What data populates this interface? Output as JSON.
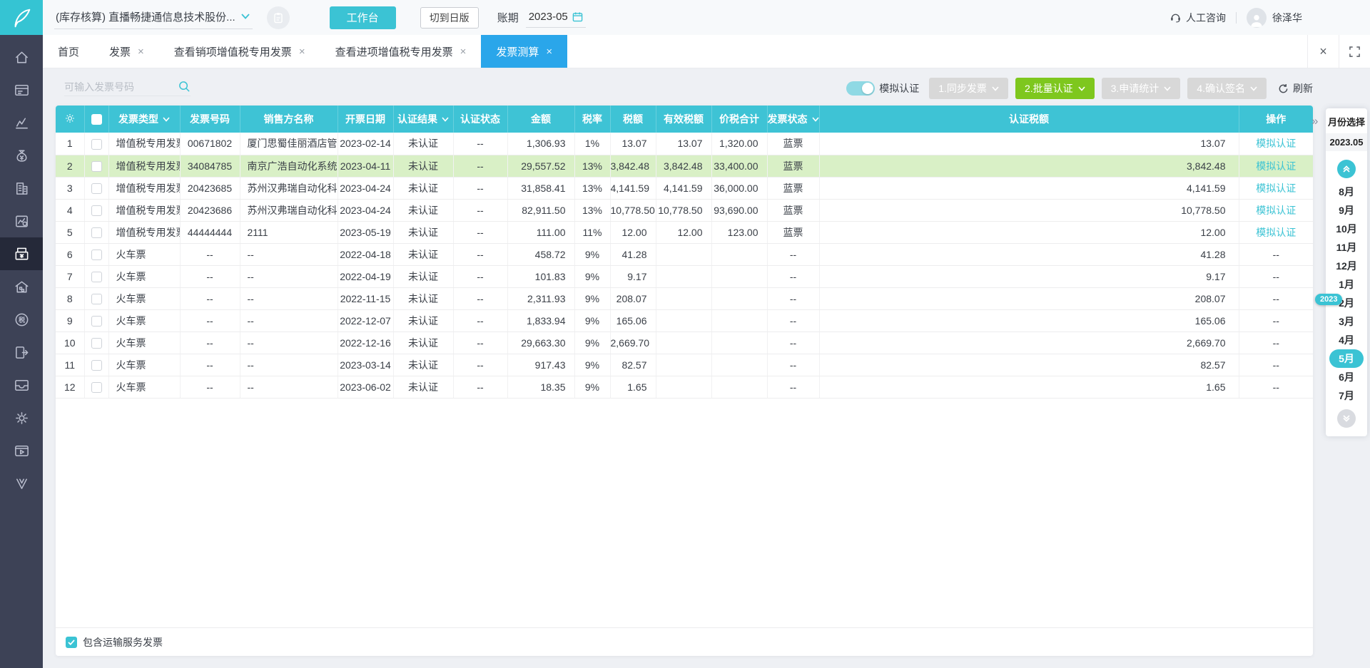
{
  "colors": {
    "accent_teal": "#3bc3d4",
    "table_header_teal": "#3ec3d5",
    "active_tab_blue": "#2aa6ea",
    "button_green": "#7ec71e",
    "button_gray": "#d8d8d8",
    "selected_row_green": "#d9f0c6",
    "sidebar_bg": "#3d4256"
  },
  "topbar": {
    "company": "(库存核算) 直播畅捷通信息技术股份...",
    "workbench_btn": "工作台",
    "switch_btn": "切到日版",
    "period_label": "账期",
    "period_value": "2023-05",
    "support": "人工咨询",
    "username": "徐泽华"
  },
  "tabs": [
    {
      "label": "首页",
      "closable": false,
      "active": false
    },
    {
      "label": "发票",
      "closable": true,
      "active": false
    },
    {
      "label": "查看销项增值税专用发票",
      "closable": true,
      "active": false
    },
    {
      "label": "查看进项增值税专用发票",
      "closable": true,
      "active": false
    },
    {
      "label": "发票测算",
      "closable": true,
      "active": true
    }
  ],
  "toolbar": {
    "search_placeholder": "可输入发票号码",
    "toggle_label": "模拟认证",
    "toggle_on": true,
    "buttons": [
      {
        "label": "1.同步发票",
        "style": "gray"
      },
      {
        "label": "2.批量认证",
        "style": "green"
      },
      {
        "label": "3.申请统计",
        "style": "gray"
      },
      {
        "label": "4.确认签名",
        "style": "gray"
      }
    ],
    "refresh_label": "刷新"
  },
  "table": {
    "columns": [
      "发票类型",
      "发票号码",
      "销售方名称",
      "开票日期",
      "认证结果",
      "认证状态",
      "金额",
      "税率",
      "税额",
      "有效税额",
      "价税合计",
      "发票状态",
      "认证税额",
      "操作"
    ],
    "sortable_columns": [
      "发票类型",
      "认证结果",
      "发票状态"
    ],
    "rows": [
      {
        "num": "1",
        "type": "增值税专用发票",
        "no": "00671802",
        "seller": "厦门思蜀佳丽酒店管理有限...",
        "date": "2023-02-14",
        "result": "未认证",
        "status": "--",
        "amount": "1,306.93",
        "rate": "1%",
        "tax": "13.07",
        "valid_tax": "13.07",
        "total": "1,320.00",
        "inv_status": "蓝票",
        "cert_tax": "13.07",
        "action": "模拟认证",
        "selected": false
      },
      {
        "num": "2",
        "type": "增值税专用发票",
        "no": "34084785",
        "seller": "南京广浩自动化系统有限责...",
        "date": "2023-04-11",
        "result": "未认证",
        "status": "--",
        "amount": "29,557.52",
        "rate": "13%",
        "tax": "3,842.48",
        "valid_tax": "3,842.48",
        "total": "33,400.00",
        "inv_status": "蓝票",
        "cert_tax": "3,842.48",
        "action": "模拟认证",
        "selected": true
      },
      {
        "num": "3",
        "type": "增值税专用发票",
        "no": "20423685",
        "seller": "苏州汉弗瑞自动化科技有限...",
        "date": "2023-04-24",
        "result": "未认证",
        "status": "--",
        "amount": "31,858.41",
        "rate": "13%",
        "tax": "4,141.59",
        "valid_tax": "4,141.59",
        "total": "36,000.00",
        "inv_status": "蓝票",
        "cert_tax": "4,141.59",
        "action": "模拟认证",
        "selected": false
      },
      {
        "num": "4",
        "type": "增值税专用发票",
        "no": "20423686",
        "seller": "苏州汉弗瑞自动化科技有限...",
        "date": "2023-04-24",
        "result": "未认证",
        "status": "--",
        "amount": "82,911.50",
        "rate": "13%",
        "tax": "10,778.50",
        "valid_tax": "10,778.50",
        "total": "93,690.00",
        "inv_status": "蓝票",
        "cert_tax": "10,778.50",
        "action": "模拟认证",
        "selected": false
      },
      {
        "num": "5",
        "type": "增值税专用发票",
        "no": "44444444",
        "seller": "2111",
        "date": "2023-05-19",
        "result": "未认证",
        "status": "--",
        "amount": "111.00",
        "rate": "11%",
        "tax": "12.00",
        "valid_tax": "12.00",
        "total": "123.00",
        "inv_status": "蓝票",
        "cert_tax": "12.00",
        "action": "模拟认证",
        "selected": false
      },
      {
        "num": "6",
        "type": "火车票",
        "no": "--",
        "seller": "--",
        "date": "2022-04-18",
        "result": "未认证",
        "status": "--",
        "amount": "458.72",
        "rate": "9%",
        "tax": "41.28",
        "valid_tax": "",
        "total": "",
        "inv_status": "--",
        "cert_tax": "41.28",
        "action": "--",
        "selected": false
      },
      {
        "num": "7",
        "type": "火车票",
        "no": "--",
        "seller": "--",
        "date": "2022-04-19",
        "result": "未认证",
        "status": "--",
        "amount": "101.83",
        "rate": "9%",
        "tax": "9.17",
        "valid_tax": "",
        "total": "",
        "inv_status": "--",
        "cert_tax": "9.17",
        "action": "--",
        "selected": false
      },
      {
        "num": "8",
        "type": "火车票",
        "no": "--",
        "seller": "--",
        "date": "2022-11-15",
        "result": "未认证",
        "status": "--",
        "amount": "2,311.93",
        "rate": "9%",
        "tax": "208.07",
        "valid_tax": "",
        "total": "",
        "inv_status": "--",
        "cert_tax": "208.07",
        "action": "--",
        "selected": false
      },
      {
        "num": "9",
        "type": "火车票",
        "no": "--",
        "seller": "--",
        "date": "2022-12-07",
        "result": "未认证",
        "status": "--",
        "amount": "1,833.94",
        "rate": "9%",
        "tax": "165.06",
        "valid_tax": "",
        "total": "",
        "inv_status": "--",
        "cert_tax": "165.06",
        "action": "--",
        "selected": false
      },
      {
        "num": "10",
        "type": "火车票",
        "no": "--",
        "seller": "--",
        "date": "2022-12-16",
        "result": "未认证",
        "status": "--",
        "amount": "29,663.30",
        "rate": "9%",
        "tax": "2,669.70",
        "valid_tax": "",
        "total": "",
        "inv_status": "--",
        "cert_tax": "2,669.70",
        "action": "--",
        "selected": false
      },
      {
        "num": "11",
        "type": "火车票",
        "no": "--",
        "seller": "--",
        "date": "2023-03-14",
        "result": "未认证",
        "status": "--",
        "amount": "917.43",
        "rate": "9%",
        "tax": "82.57",
        "valid_tax": "",
        "total": "",
        "inv_status": "--",
        "cert_tax": "82.57",
        "action": "--",
        "selected": false
      },
      {
        "num": "12",
        "type": "火车票",
        "no": "--",
        "seller": "--",
        "date": "2023-06-02",
        "result": "未认证",
        "status": "--",
        "amount": "18.35",
        "rate": "9%",
        "tax": "1.65",
        "valid_tax": "",
        "total": "",
        "inv_status": "--",
        "cert_tax": "1.65",
        "action": "--",
        "selected": false
      }
    ]
  },
  "month_panel": {
    "title": "月份选择",
    "current_period": "2023.05",
    "year_badge": "2023",
    "months_prev_year": [
      "8月",
      "9月",
      "10月",
      "11月",
      "12月"
    ],
    "months_current_year": [
      "1月",
      "2月",
      "3月",
      "4月",
      "5月",
      "6月",
      "7月"
    ],
    "selected_month": "5月"
  },
  "footer": {
    "checkbox_label": "包含运输服务发票",
    "checked": true
  },
  "sidebar": {
    "items": [
      "home-icon",
      "voucher-icon",
      "chart-icon",
      "funds-icon",
      "assets-icon",
      "statement-icon",
      "invoice-icon",
      "inventory-icon",
      "tax-icon",
      "transfer-icon",
      "archive-icon",
      "settings-icon",
      "video-icon",
      "brand-v-icon"
    ],
    "active": "invoice-icon"
  }
}
